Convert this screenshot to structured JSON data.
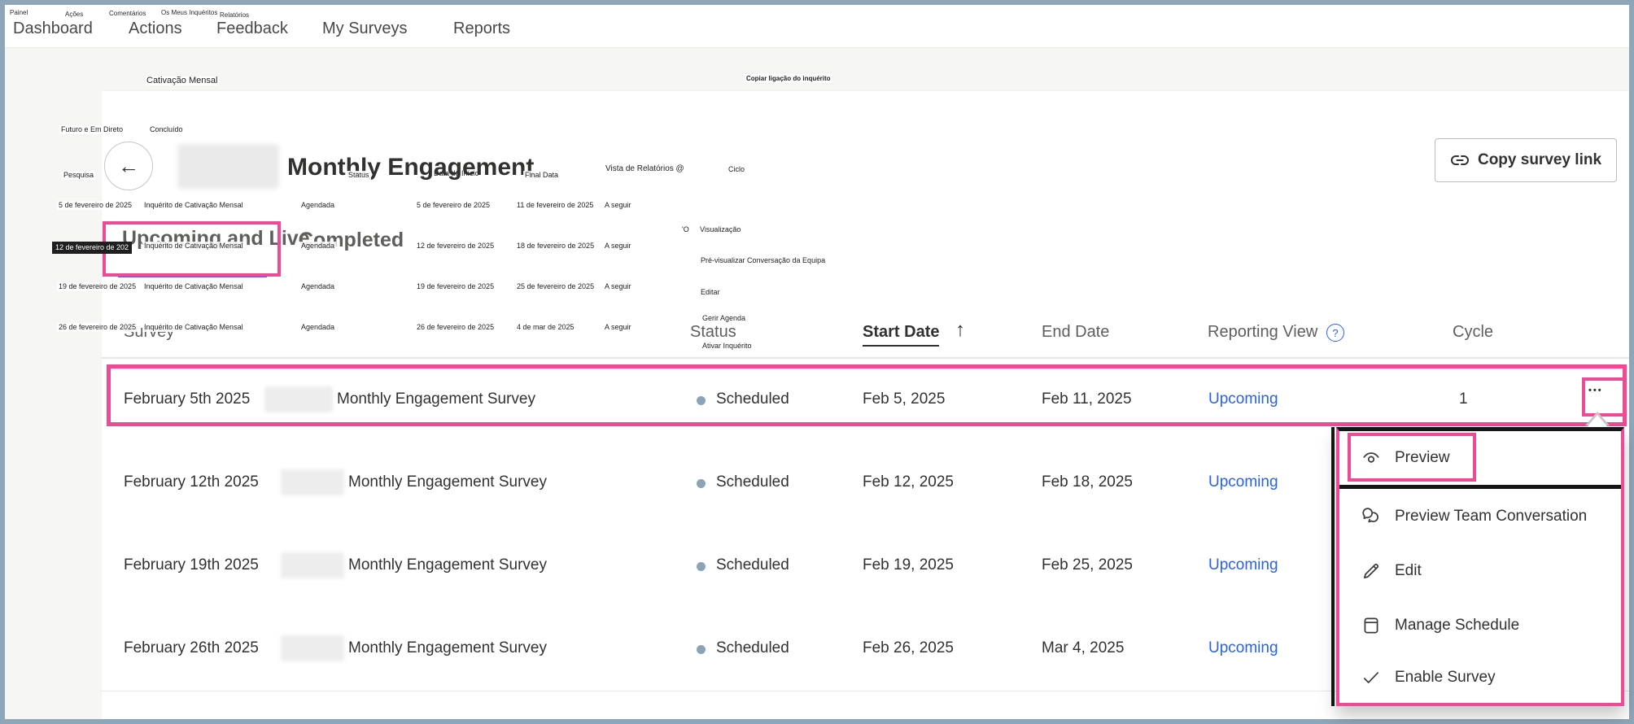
{
  "colors": {
    "frame": "#8ea6ba",
    "pink": "#ef4a94",
    "link_blue": "#2b63d8",
    "tab_underline": "#4b5fc9",
    "status_dot": "#8ba3b6",
    "text_dark": "#323130",
    "text_grey": "#605e5c"
  },
  "nav": {
    "items": [
      {
        "label": "Dashboard",
        "pt": "Painel"
      },
      {
        "label": "Actions",
        "pt": "Ações"
      },
      {
        "label": "Feedback",
        "pt": "Comentários"
      },
      {
        "label": "My Surveys",
        "pt": "Os Meus Inquéritos"
      },
      {
        "label": "Reports",
        "pt": "Relatórios"
      }
    ]
  },
  "page": {
    "title": "Monthly Engagement",
    "back_arrow": "←",
    "copy_button_label": "Copy survey link",
    "tabs": [
      {
        "label": "Upcoming and Live",
        "active": true
      },
      {
        "label": "Completed",
        "active": false
      }
    ]
  },
  "overlay": {
    "survey_title_pt": "Cativação Mensal",
    "copy_link_pt": "Copiar ligação do inquérito",
    "tab_upcoming_pt": "Futuro e Em Direto",
    "tab_completed_pt": "Concluído",
    "search_pt": "Pesquisa",
    "status_pt": "Status",
    "start_date_pt": "Data de Início",
    "end_date_pt": "Final Data",
    "reporting_view_pt": "Vista de Relatórios @",
    "cycle_pt": "Ciclo",
    "menu_bullet_pt": "'O",
    "menu_preview_pt": "Visualização",
    "menu_ptc_pt": "Pré-visualizar Conversação da Equipa",
    "menu_edit_pt": "Editar",
    "menu_manage_pt": "Gerir Agenda",
    "menu_enable_pt": "Ativar Inquérito",
    "rows": [
      {
        "date": "5 de fevereiro de 2025",
        "name": "Inquérito de Cativação Mensal",
        "status": "Agendada",
        "start": "5 de fevereiro de 2025",
        "end": "11 de fevereiro de 2025",
        "next": "A seguir",
        "chip": false
      },
      {
        "date": "12 de fevereiro de 202",
        "name": "Inquérito de Cativação Mensal",
        "status": "Agendada",
        "start": "12 de fevereiro de 2025",
        "end": "18 de fevereiro de 2025",
        "next": "A seguir",
        "chip": true
      },
      {
        "date": "19 de fevereiro de 2025",
        "name": "Inquérito de Cativação Mensal",
        "status": "Agendada",
        "start": "19 de fevereiro de 2025",
        "end": "25 de fevereiro de 2025",
        "next": "A seguir",
        "chip": false
      },
      {
        "date": "26 de fevereiro de 2025",
        "name": "Inquérito de Cativação Mensal",
        "status": "Agendada",
        "start": "26 de fevereiro de 2025",
        "end": "4 de mar de 2025",
        "next": "A seguir",
        "chip": false
      }
    ]
  },
  "table": {
    "headers": {
      "survey": "Survey",
      "status": "Status",
      "start": "Start Date",
      "sort_arrow": "↑",
      "end": "End Date",
      "reporting": "Reporting View",
      "help": "?",
      "cycle": "Cycle"
    },
    "rows": [
      {
        "name_prefix": "February 5th 2025",
        "name_suffix": "Monthly Engagement Survey",
        "status": "Scheduled",
        "start": "Feb 5, 2025",
        "end": "Feb 11, 2025",
        "reporting": "Upcoming",
        "cycle": "1",
        "more": "•••"
      },
      {
        "name_prefix": "February 12th 2025",
        "name_suffix": "Monthly Engagement Survey",
        "status": "Scheduled",
        "start": "Feb 12, 2025",
        "end": "Feb 18, 2025",
        "reporting": "Upcoming",
        "cycle": "",
        "more": ""
      },
      {
        "name_prefix": "February 19th 2025",
        "name_suffix": "Monthly Engagement Survey",
        "status": "Scheduled",
        "start": "Feb 19, 2025",
        "end": "Feb 25, 2025",
        "reporting": "Upcoming",
        "cycle": "",
        "more": ""
      },
      {
        "name_prefix": "February 26th 2025",
        "name_suffix": "Monthly Engagement Survey",
        "status": "Scheduled",
        "start": "Feb 26, 2025",
        "end": "Mar 4, 2025",
        "reporting": "Upcoming",
        "cycle": "",
        "more": ""
      }
    ]
  },
  "menu": {
    "items": [
      {
        "label": "Preview",
        "icon": "eye-icon",
        "highlighted": true
      },
      {
        "label": "Preview Team Conversation",
        "icon": "chat-icon",
        "highlighted": false
      },
      {
        "label": "Edit",
        "icon": "pencil-icon",
        "highlighted": false
      },
      {
        "label": "Manage Schedule",
        "icon": "calendar-icon",
        "highlighted": false
      },
      {
        "label": "Enable Survey",
        "icon": "check-icon",
        "highlighted": false
      }
    ]
  }
}
